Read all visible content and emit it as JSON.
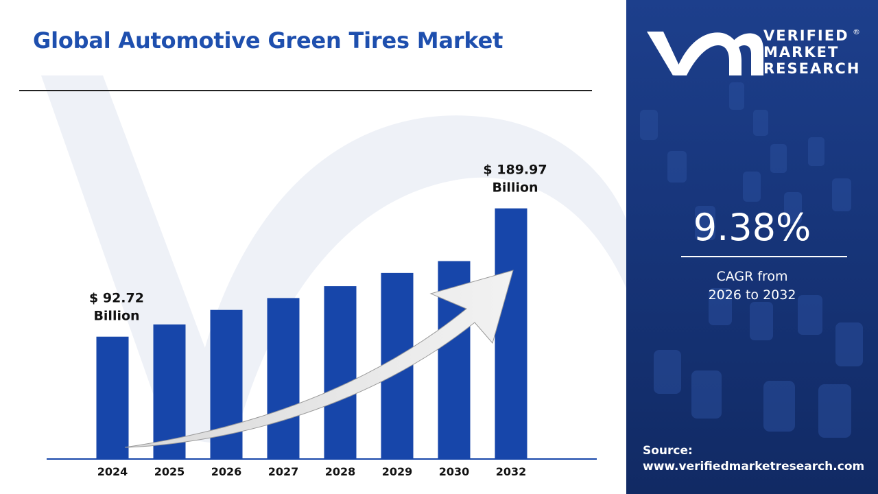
{
  "title": "Global Automotive Green Tires Market",
  "brand": {
    "line1": "VERIFIED",
    "line2": "MARKET",
    "line3": "RESEARCH",
    "registered": "®"
  },
  "cagr": {
    "value": "9.38%",
    "label_line1": "CAGR from",
    "label_line2": "2026 to 2032"
  },
  "source": {
    "label": "Source:",
    "url": "www.verifiedmarketresearch.com"
  },
  "colors": {
    "accent": "#1e4fae",
    "bar": "#1746aa",
    "panel": "#17357a"
  },
  "chart_data": {
    "type": "bar",
    "title": "Global Automotive Green Tires Market",
    "xlabel": "",
    "ylabel": "",
    "categories": [
      "2024",
      "2025",
      "2026",
      "2027",
      "2028",
      "2029",
      "2030",
      "2032"
    ],
    "values": [
      92.72,
      102.0,
      113.0,
      122.0,
      131.0,
      141.0,
      150.0,
      189.97
    ],
    "ylim": [
      0,
      200
    ],
    "grid": false,
    "annotations": [
      {
        "category": "2024",
        "line1": "$ 92.72",
        "line2": "Billion"
      },
      {
        "category": "2032",
        "line1": "$ 189.97",
        "line2": "Billion"
      }
    ],
    "trend_arrow": true
  }
}
